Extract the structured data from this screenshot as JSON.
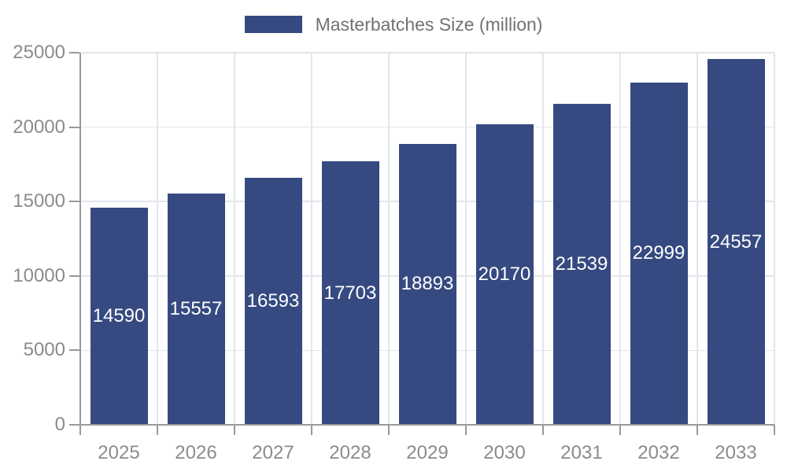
{
  "legend": {
    "label": "Masterbatches Size (million)"
  },
  "chart_data": {
    "type": "bar",
    "title": "Masterbatches Size (million)",
    "series_name": "Masterbatches Size (million)",
    "categories": [
      "2025",
      "2026",
      "2027",
      "2028",
      "2029",
      "2030",
      "2031",
      "2032",
      "2033"
    ],
    "values": [
      14590,
      15557,
      16593,
      17703,
      18893,
      20170,
      21539,
      22999,
      24557
    ],
    "xlabel": "",
    "ylabel": "",
    "ylim": [
      0,
      25000
    ],
    "y_ticks": [
      0,
      5000,
      10000,
      15000,
      20000,
      25000
    ],
    "grid": true,
    "legend_position": "top",
    "value_labels_position": "inside-middle",
    "colors": {
      "bar": "#364A81",
      "bar_label": "#ffffff",
      "grid": "#e2e5ec",
      "axis": "#999999",
      "tick_label": "#8b8b8b",
      "legend_text": "#727272"
    }
  }
}
